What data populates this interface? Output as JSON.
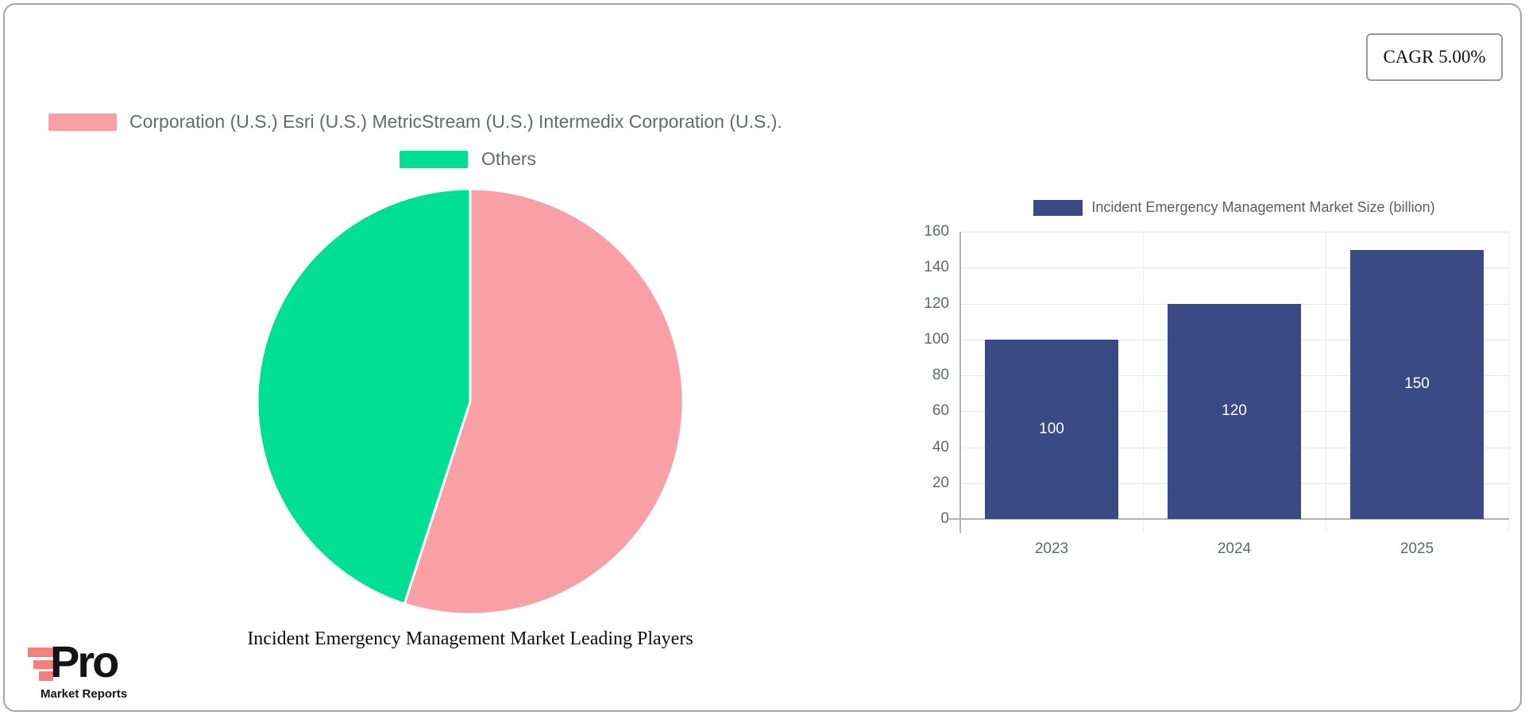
{
  "cagr_badge": {
    "label": "CAGR 5.00%"
  },
  "logo": {
    "title": "Pro",
    "subtitle": "Market Reports"
  },
  "colors": {
    "pie_leading_players": "#f8a0a6",
    "pie_others": "#00df94",
    "bar_fill": "#394a85",
    "logo_accent": "#f4807e",
    "frame_border": "#a6a6a6",
    "legend_text": "#65686c",
    "axis_text": "#63666a"
  },
  "chart_data": [
    {
      "type": "pie",
      "title": "Incident Emergency Management Market Leading Players",
      "slices": [
        {
          "label": "Corporation (U.S.) Esri (U.S.) MetricStream (U.S.) Intermedix Corporation (U.S.).",
          "value": 55,
          "color": "#f8a0a6"
        },
        {
          "label": "Others",
          "value": 45,
          "color": "#00df94"
        }
      ],
      "start_angle": "12-oclock",
      "direction": "clockwise",
      "divider_color": "#ffffff",
      "legend_position": "top"
    },
    {
      "type": "bar",
      "legend": "Incident Emergency Management Market Size (billion)",
      "categories": [
        "2023",
        "2024",
        "2025"
      ],
      "values": [
        100,
        120,
        150
      ],
      "value_label_color": "#ffffff",
      "bar_color": "#394a85",
      "ylim": [
        0,
        160
      ],
      "yticks": [
        0,
        20,
        40,
        60,
        80,
        100,
        120,
        140,
        160
      ],
      "grid": true,
      "legend_position": "top"
    }
  ]
}
